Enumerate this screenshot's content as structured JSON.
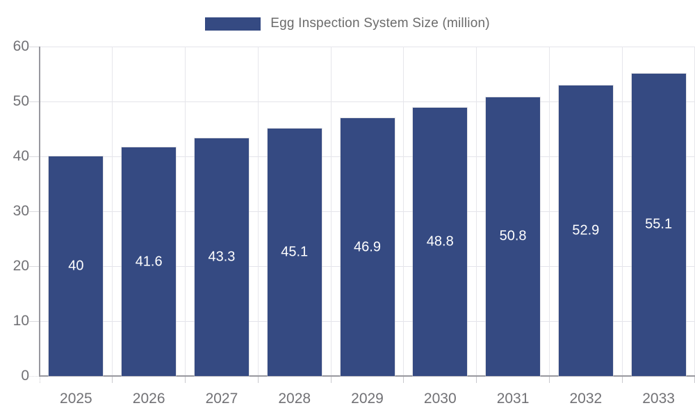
{
  "chart_data": {
    "type": "bar",
    "title": "",
    "legend": "Egg Inspection System Size (million)",
    "legend_position": "top-center",
    "categories": [
      "2025",
      "2026",
      "2027",
      "2028",
      "2029",
      "2030",
      "2031",
      "2032",
      "2033"
    ],
    "values": [
      40,
      41.6,
      43.3,
      45.1,
      46.9,
      48.8,
      50.8,
      52.9,
      55.1
    ],
    "value_labels": [
      "40",
      "41.6",
      "43.3",
      "45.1",
      "46.9",
      "48.8",
      "50.8",
      "52.9",
      "55.1"
    ],
    "xlabel": "",
    "ylabel": "",
    "ylim": [
      0,
      60
    ],
    "yticks": [
      0,
      10,
      20,
      30,
      40,
      50,
      60
    ],
    "grid": true,
    "colors": {
      "bar": "#354a82",
      "grid": "#e4e4ea",
      "axis": "#98989e",
      "tick_label": "#717175",
      "legend_text": "#6b6b6b",
      "bar_value_text": "#ffffff"
    }
  }
}
